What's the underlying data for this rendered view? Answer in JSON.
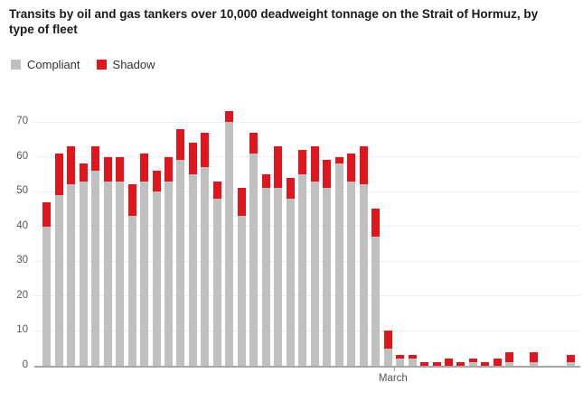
{
  "title_lines": [
    "Transits by oil and gas tankers over 10,000 deadweight tonnage on the Strait of Hormuz, by",
    "type of fleet"
  ],
  "legend": [
    {
      "label": "Compliant",
      "color": "#c0c0c0"
    },
    {
      "label": "Shadow",
      "color": "#e0161f"
    }
  ],
  "chart_data": {
    "type": "bar",
    "stacked": true,
    "title": "Transits by oil and gas tankers over 10,000 deadweight tonnage on the Strait of Hormuz, by type of fleet",
    "xlabel": "",
    "ylabel": "",
    "y_ticks": [
      0,
      10,
      20,
      30,
      40,
      50,
      60,
      70
    ],
    "ylim": [
      0,
      75
    ],
    "grid": "horizontal",
    "legend_position": "top-left",
    "x_axis": {
      "tick_label": "March",
      "tick_slot_boundary": 29
    },
    "n_bars": 44,
    "series": [
      {
        "name": "Compliant",
        "color": "#c0c0c0",
        "values": [
          40,
          49,
          52,
          53,
          56,
          53,
          53,
          43,
          53,
          50,
          53,
          59,
          55,
          57,
          48,
          70,
          43,
          61,
          51,
          51,
          48,
          55,
          53,
          51,
          58,
          53,
          52,
          37,
          5,
          2,
          2,
          0,
          0,
          0,
          0,
          1,
          0,
          0,
          1,
          0,
          1,
          0,
          0,
          1
        ]
      },
      {
        "name": "Shadow",
        "color": "#e0161f",
        "values": [
          7,
          12,
          11,
          5,
          7,
          7,
          7,
          9,
          8,
          6,
          7,
          9,
          9,
          10,
          5,
          3,
          8,
          6,
          4,
          12,
          6,
          7,
          10,
          8,
          2,
          8,
          11,
          8,
          5,
          1,
          1,
          1,
          1,
          2,
          1,
          1,
          1,
          2,
          3,
          0,
          3,
          0,
          0,
          2
        ]
      }
    ]
  }
}
